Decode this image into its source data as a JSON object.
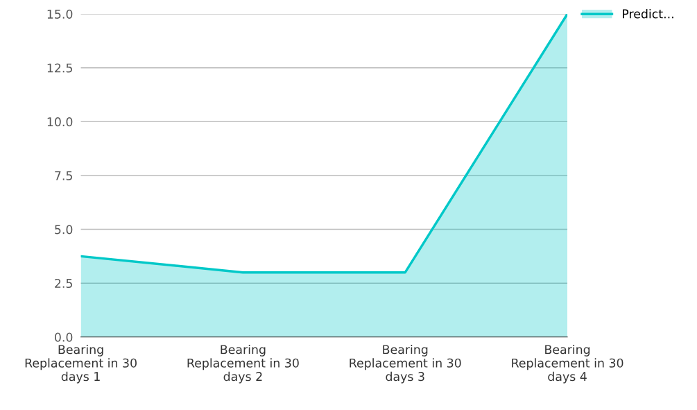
{
  "chart_data": {
    "type": "area",
    "categories": [
      "Bearing\nReplacement in 30\ndays 1",
      "Bearing\nReplacement in 30\ndays 2",
      "Bearing\nReplacement in 30\ndays 3",
      "Bearing\nReplacement in 30\ndays 4"
    ],
    "series": [
      {
        "name": "Predict...",
        "color": "#00c8c8",
        "values": [
          3.75,
          3.0,
          3.0,
          15.0
        ]
      }
    ],
    "ylim": [
      0,
      15
    ],
    "yticks": [
      {
        "value": 0,
        "label": "0.0"
      },
      {
        "value": 2.5,
        "label": "2.5"
      },
      {
        "value": 5,
        "label": "5.0"
      },
      {
        "value": 7.5,
        "label": "7.5"
      },
      {
        "value": 10,
        "label": "10.0"
      },
      {
        "value": 12.5,
        "label": "12.5"
      },
      {
        "value": 15,
        "label": "15.0"
      }
    ],
    "grid": "y",
    "legend": "top right"
  }
}
